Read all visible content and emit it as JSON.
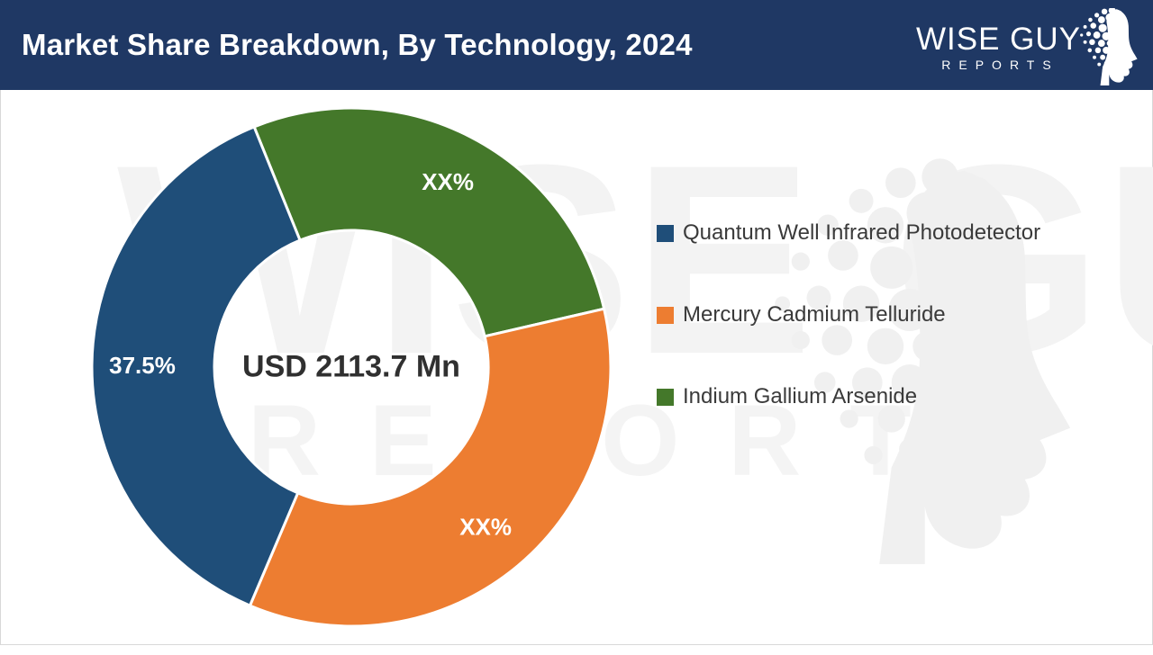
{
  "header": {
    "title": "Market Share Breakdown, By Technology, 2024",
    "logo": {
      "name": "WISE GUY",
      "sub": "REPORTS"
    }
  },
  "watermark": {
    "line1": "WISE GUY",
    "line2": "REPORTS"
  },
  "chart_data": {
    "type": "donut",
    "title": "Market Share Breakdown, By Technology, 2024",
    "center_label": "USD 2113.7 Mn",
    "start_angle_deg": -22,
    "outer_radius": 288,
    "inner_radius": 152,
    "label_radius": 232,
    "segments": [
      {
        "name": "Indium Gallium Arsenide",
        "label": "XX%",
        "arc_pct": 27.5,
        "color": "#44782a"
      },
      {
        "name": "Mercury Cadmium Telluride",
        "label": "XX%",
        "arc_pct": 35.0,
        "color": "#ed7d31"
      },
      {
        "name": "Quantum Well Infrared Photodetector",
        "label": "37.5%",
        "arc_pct": 37.5,
        "color": "#1f4e79"
      }
    ],
    "legend_position": "right"
  },
  "legend": {
    "items": [
      {
        "label": "Quantum Well Infrared Photodetector",
        "color": "#1f4e79"
      },
      {
        "label": "Mercury Cadmium Telluride",
        "color": "#ed7d31"
      },
      {
        "label": "Indium Gallium Arsenide",
        "color": "#44782a"
      }
    ]
  },
  "colors": {
    "header_bg": "#1f3864",
    "segment_gap": "#ffffff",
    "center_text": "#303030",
    "legend_text": "#3a3a3a",
    "watermark": "#f3f3f3",
    "frame_border": "#d8d8d8"
  }
}
